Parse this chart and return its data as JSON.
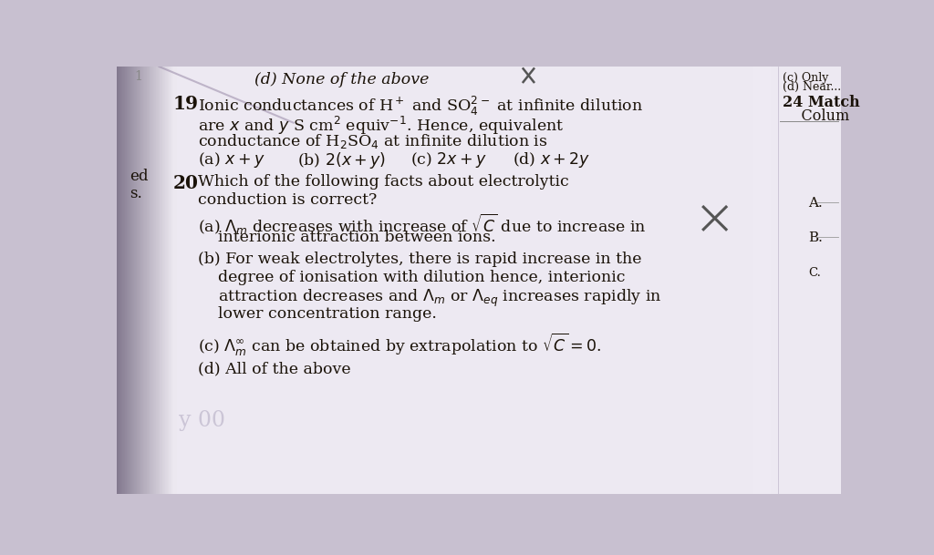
{
  "bg_color": "#c8c0d0",
  "page_color": "#f0edf5",
  "shadow_color": "#9990a8",
  "text_color": "#1a1208",
  "font_size": 12.5,
  "q_font_size": 13.5,
  "top_text": "(d) None of the above",
  "q19_num": "19",
  "q19_l1": "Ionic conductances of H$^+$ and SO$_4^{2-}$ at infinite dilution",
  "q19_l2": "are $x$ and $y$ S cm$^2$ equiv$^{-1}$. Hence, equivalent",
  "q19_l3": "conductance of H$_2$SO$_4$ at infinite dilution is",
  "q19_oa": "(a) $x + y$",
  "q19_ob": "(b) $2(x + y)$",
  "q19_oc": "(c) $2x + y$",
  "q19_od": "(d) $x + 2y$",
  "q20_num": "20",
  "q20_l1": "Which of the following facts about electrolytic",
  "q20_l2": "conduction is correct?",
  "q20_a1": "(a) $\\Lambda_m$ decreases with increase of $\\sqrt{C}$ due to increase in",
  "q20_a2": "interionic attraction between ions.",
  "q20_b1": "(b) For weak electrolytes, there is rapid increase in the",
  "q20_b2": "degree of ionisation with dilution hence, interionic",
  "q20_b3": "attraction decreases and $\\Lambda_m$ or $\\Lambda_{eq}$ increases rapidly in",
  "q20_b4": "lower concentration range.",
  "q20_c1": "(c) $\\Lambda_m^\\infty$ can be obtained by extrapolation to $\\sqrt{C} = 0$.",
  "q20_d1": "(d) All of the above",
  "right_c": "(c) Only",
  "right_d": "(d) Near...",
  "right_24": "24 Match",
  "right_col": "    Colum",
  "right_A": "A.",
  "right_B": "B.",
  "right_C": "C.",
  "left_ed": "ed",
  "left_s": "s.",
  "watermark": "y 00"
}
